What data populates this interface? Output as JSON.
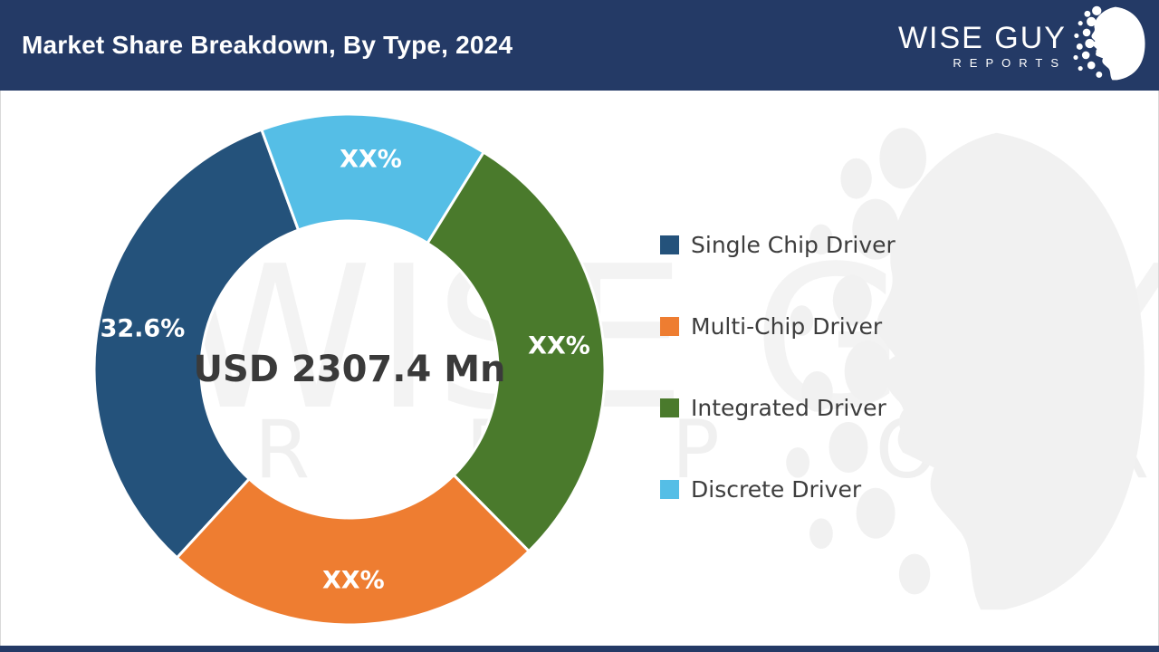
{
  "header": {
    "title": "Market Share Breakdown, By Type, 2024",
    "bg_color": "#243a66",
    "logo": {
      "line1": "WISE GUY",
      "line2": "REPORTS"
    }
  },
  "chart_data": {
    "type": "pie",
    "subtype": "donut",
    "title": "Market Share Breakdown, By Type, 2024",
    "center_label": "USD 2307.4 Mn",
    "value_unit": "percent",
    "series": [
      {
        "name": "Single Chip Driver",
        "value": 32.6,
        "display": "32.6%",
        "color": "#24527b"
      },
      {
        "name": "Multi-Chip Driver",
        "value": 24.2,
        "display": "XX%",
        "color": "#ee7d31"
      },
      {
        "name": "Integrated Driver",
        "value": 28.8,
        "display": "XX%",
        "color": "#4a7a2c"
      },
      {
        "name": "Discrete Driver",
        "value": 14.4,
        "display": "XX%",
        "color": "#55bee6"
      }
    ],
    "legend_position": "right",
    "draw": {
      "order": [
        0,
        3,
        2,
        1
      ],
      "start_angle_css_deg": 222.5,
      "direction": "clockwise",
      "center": [
        385,
        308
      ],
      "outer_radius": 282,
      "inner_radius": 164,
      "label_radius": 233,
      "gap_stroke": "#ffffff",
      "gap_width": 3,
      "label_color": "#ffffff"
    }
  },
  "watermark": {
    "line1": "WISE GUY",
    "line2": "R E P O R T S"
  },
  "footer": {
    "bar_color": "#243a66"
  }
}
